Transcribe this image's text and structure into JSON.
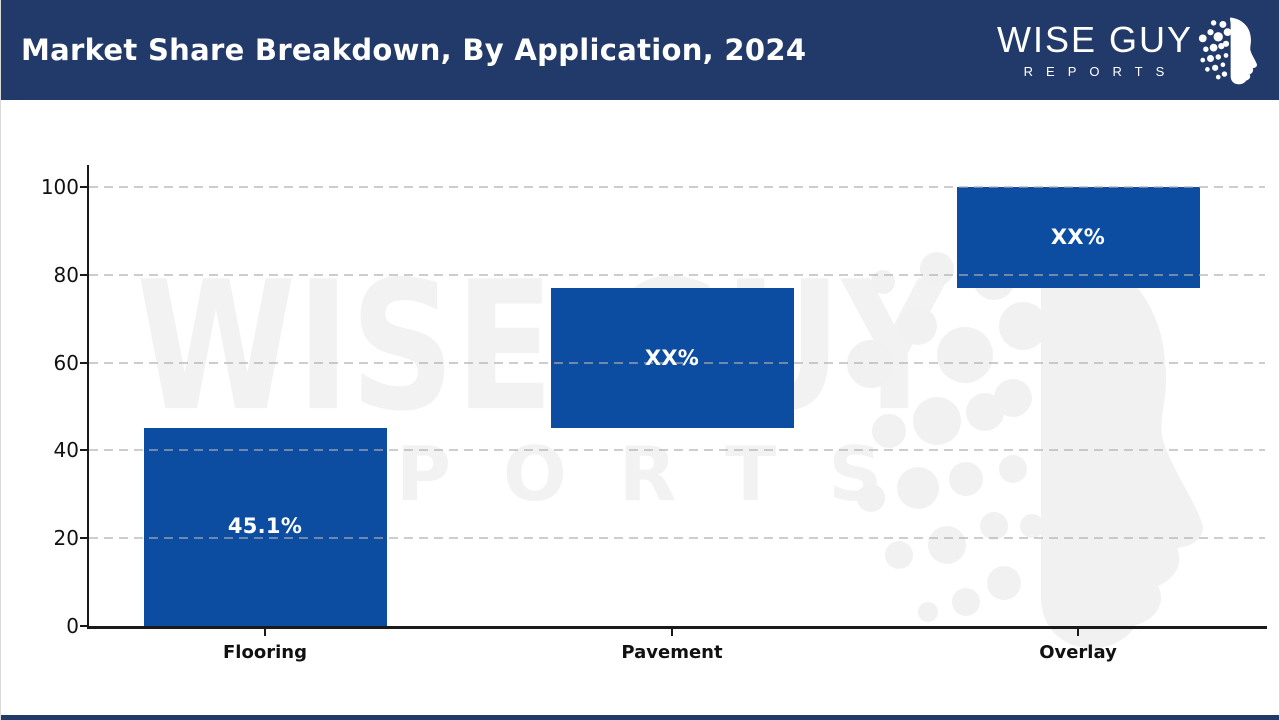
{
  "header": {
    "title": "Market Share Breakdown, By Application, 2024",
    "logo": {
      "line1": "WISE GUY",
      "line2": "REPORTS"
    }
  },
  "chart_data": {
    "type": "bar",
    "subtype": "waterfall",
    "title": "Market Share Breakdown, By Application, 2024",
    "categories": [
      "Flooring",
      "Pavement",
      "Overlay"
    ],
    "series": [
      {
        "name": "Market share (%)",
        "segments": [
          {
            "category": "Flooring",
            "start": 0,
            "end": 45.1,
            "label": "45.1%"
          },
          {
            "category": "Pavement",
            "start": 45.1,
            "end": 77,
            "label": "XX%"
          },
          {
            "category": "Overlay",
            "start": 77,
            "end": 100,
            "label": "XX%"
          }
        ]
      }
    ],
    "ylim": [
      0,
      100
    ],
    "yticks": [
      0,
      20,
      40,
      60,
      80,
      100
    ],
    "grid": {
      "show": true,
      "style": "dashed",
      "axis": "y",
      "drawn_over_bars": true
    },
    "legend": "none",
    "bar_color": "#0c4da2",
    "label_color": "#ffffff",
    "axis_color": "#1a1a1a",
    "header_color": "#223a69",
    "watermark": {
      "line1": "WISE GUY",
      "line2": "REPORTS"
    }
  }
}
